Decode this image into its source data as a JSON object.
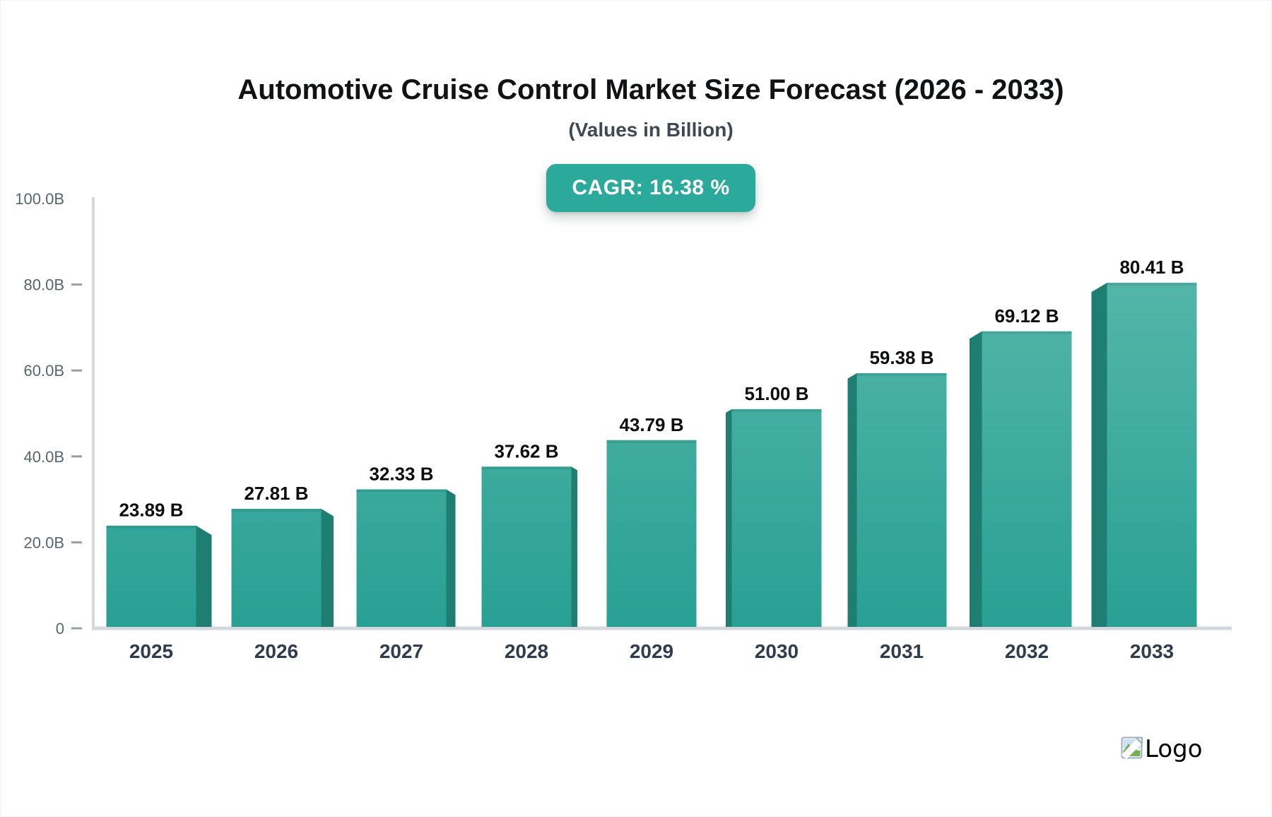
{
  "header": {
    "title": "Automotive Cruise Control Market Size Forecast (2026 - 2033)",
    "subtitle": "(Values in Billion)",
    "cagr_badge": "CAGR: 16.38 %"
  },
  "footer": {
    "logo_alt": "Logo"
  },
  "colors": {
    "bar_face_top": "#5cbaad",
    "bar_face_bottom": "#28a093",
    "bar_side": "#1f7e72",
    "bar_top_lip": "rgba(0,45,40,0.10)",
    "badge_bg": "#2baa9c",
    "axis_line": "#d4d7dd",
    "tick_dash": "#97a1ac",
    "y_label": "#57656f",
    "x_label": "#2e3c4d",
    "value_label": "#0c0d0d"
  },
  "chart_data": {
    "type": "bar",
    "title": "Automotive Cruise Control Market Size Forecast (2026 - 2033)",
    "subtitle": "(Values in Billion)",
    "annotation": "CAGR: 16.38 %",
    "categories": [
      "2025",
      "2026",
      "2027",
      "2028",
      "2029",
      "2030",
      "2031",
      "2032",
      "2033"
    ],
    "values": [
      23.89,
      27.81,
      32.33,
      37.62,
      43.79,
      51.0,
      59.38,
      69.12,
      80.41
    ],
    "value_labels": [
      "23.89 B",
      "27.81 B",
      "32.33 B",
      "37.62 B",
      "43.79 B",
      "51.00 B",
      "59.38 B",
      "69.12 B",
      "80.41 B"
    ],
    "y_ticks": [
      {
        "value": 0,
        "label": "0"
      },
      {
        "value": 20,
        "label": "20.0B"
      },
      {
        "value": 40,
        "label": "40.0B"
      },
      {
        "value": 60,
        "label": "60.0B"
      },
      {
        "value": 80,
        "label": "80.0B"
      },
      {
        "value": 100,
        "label": "100.0B"
      }
    ],
    "ylim": [
      0,
      100
    ],
    "xlabel": "",
    "ylabel": "",
    "grid": false,
    "legend": false,
    "bar_style": "3d-perspective-teal"
  }
}
